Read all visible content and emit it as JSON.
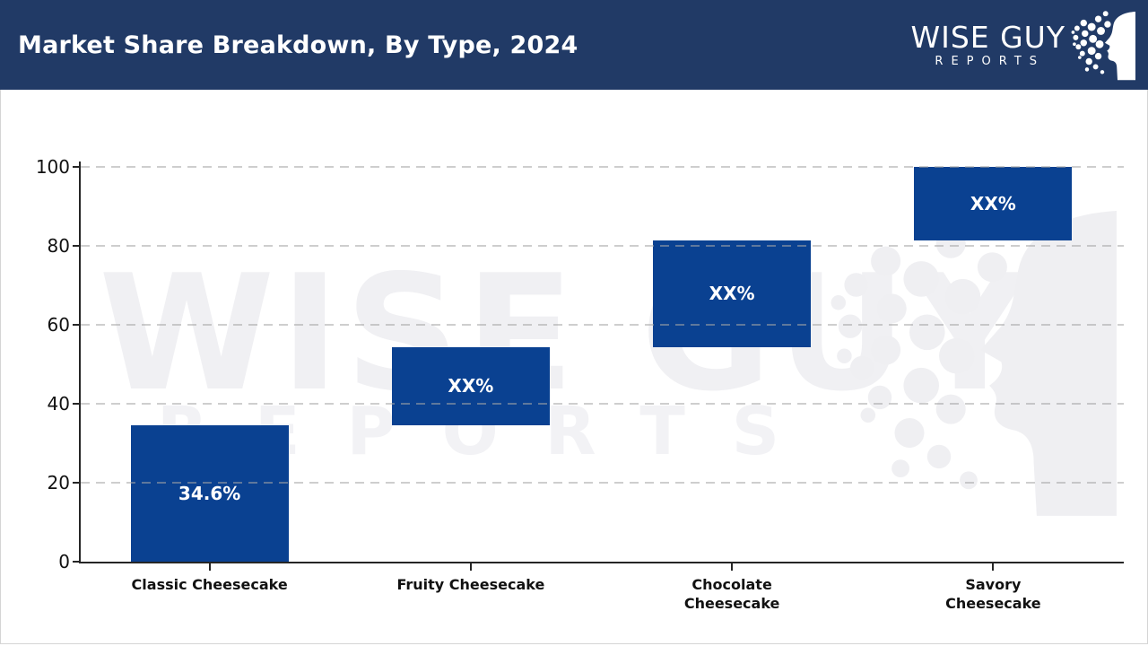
{
  "header": {
    "title": "Market Share Breakdown, By Type, 2024",
    "brand": {
      "name": "WISE GUY",
      "sub": "REPORTS"
    }
  },
  "watermark": {
    "line1": "WISE GUY",
    "line2": "REPORTS"
  },
  "colors": {
    "header_bg": "#213a66",
    "bar": "#0a4191",
    "bar_label": "#ffffff",
    "axis": "#262626",
    "gridline": "#d9d9d9",
    "watermark": "#f0f0f3"
  },
  "chart_data": {
    "type": "bar",
    "subtype": "waterfall",
    "title": "Market Share Breakdown, By Type, 2024",
    "categories": [
      "Classic Cheesecake",
      "Fruity Cheesecake",
      "Chocolate Cheesecake",
      "Savory Cheesecake"
    ],
    "tick_labels": [
      "Classic Cheesecake",
      "Fruity Cheesecake",
      "Chocolate\nCheesecake",
      "Savory Cheesecake"
    ],
    "segments": [
      {
        "category": "Classic Cheesecake",
        "start": 0,
        "end": 34.6,
        "value": 34.6,
        "label": "34.6%"
      },
      {
        "category": "Fruity Cheesecake",
        "start": 34.6,
        "end": 54.3,
        "value": 19.7,
        "label": "XX%"
      },
      {
        "category": "Chocolate Cheesecake",
        "start": 54.3,
        "end": 81.4,
        "value": 27.1,
        "label": "XX%"
      },
      {
        "category": "Savory Cheesecake",
        "start": 81.4,
        "end": 100,
        "value": 18.6,
        "label": "XX%"
      }
    ],
    "xlabel": "",
    "ylabel": "",
    "ylim": [
      0,
      100
    ],
    "yticks": [
      0,
      20,
      40,
      60,
      80,
      100
    ],
    "grid": "horizontal-dashed-over-bars",
    "legend": null
  }
}
